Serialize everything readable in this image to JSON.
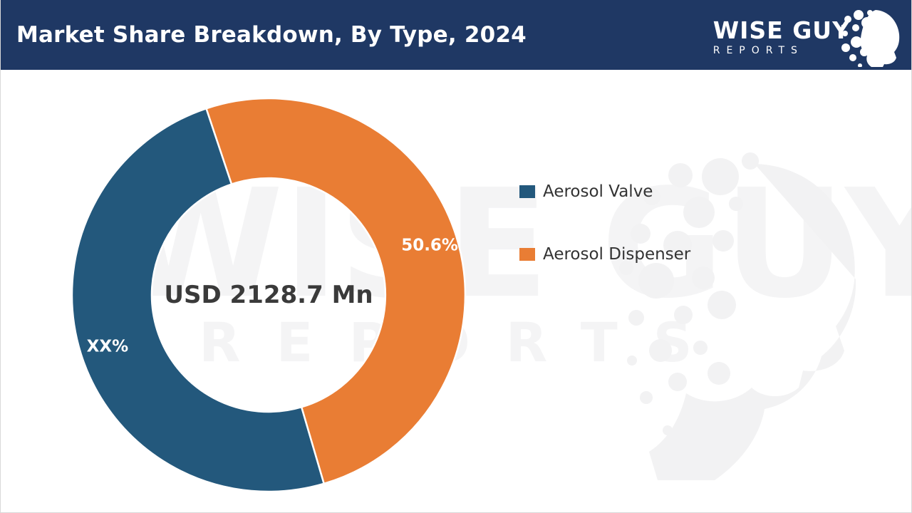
{
  "header": {
    "title": "Market Share Breakdown, By Type, 2024",
    "logo": {
      "line1": "WISE GUY",
      "line2": "REPORTS"
    }
  },
  "watermark": {
    "line1": "WISE GUY",
    "line2": "REPORTS"
  },
  "legend": {
    "items": [
      {
        "label": "Aerosol Valve",
        "color": "#23587c"
      },
      {
        "label": "Aerosol Dispenser",
        "color": "#e97d34"
      }
    ]
  },
  "colors": {
    "header_bg": "#1f3864",
    "valve_blue": "#23587c",
    "dispenser_orange": "#e97d34",
    "slice_divider": "#ffffff",
    "slice_label_text": "#ffffff",
    "center_text": "#3a3a3a",
    "legend_text": "#333333",
    "watermark": "#f4f4f5",
    "page_border": "#d9d9d9"
  },
  "chart_data": {
    "type": "pie",
    "donut": true,
    "title": "Market Share Breakdown, By Type, 2024",
    "labels": [
      "Aerosol Dispenser",
      "Aerosol Valve"
    ],
    "values": [
      50.6,
      49.4
    ],
    "slice_display_labels": [
      "50.6%",
      "XX%"
    ],
    "colors": [
      "#e97d34",
      "#23587c"
    ],
    "start_angle_deg_from_12": -18.5,
    "clockwise": true,
    "center_label": "USD 2128.7 Mn",
    "legend_position": "right",
    "inner_radius_ratio": 0.594
  }
}
